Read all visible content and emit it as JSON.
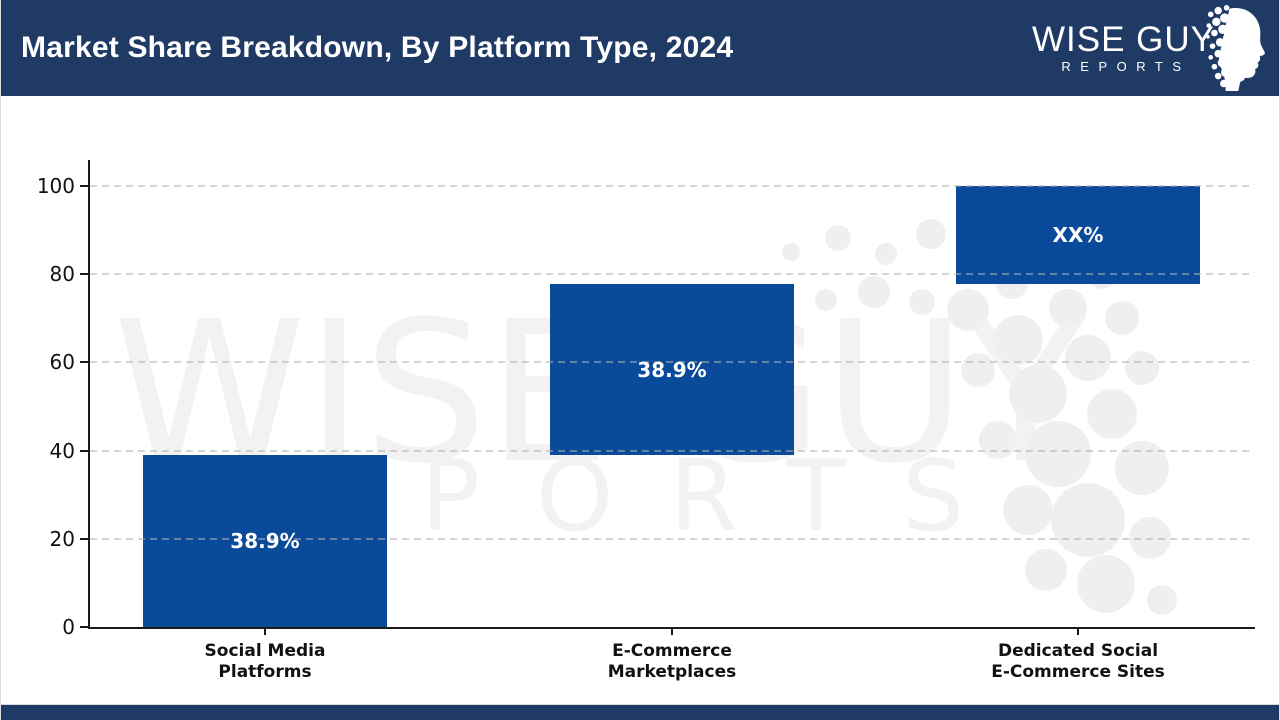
{
  "header": {
    "title": "Market Share Breakdown, By Platform Type, 2024",
    "logo": {
      "line1": "WISE GUY",
      "line2": "REPORTS"
    }
  },
  "watermark": {
    "line1": "WISE GUY",
    "line2": "REPORTS"
  },
  "chart_data": {
    "type": "bar",
    "subtype": "waterfall",
    "title": "Market Share Breakdown, By Platform Type, 2024",
    "categories": [
      "Social Media\nPlatforms",
      "E-Commerce\nMarketplaces",
      "Dedicated Social\nE-Commerce Sites"
    ],
    "segments": [
      {
        "category": "Social Media Platforms",
        "start": 0,
        "end": 38.9,
        "label": "38.9%"
      },
      {
        "category": "E-Commerce Marketplaces",
        "start": 38.9,
        "end": 77.8,
        "label": "38.9%"
      },
      {
        "category": "Dedicated Social E-Commerce Sites",
        "start": 77.8,
        "end": 100,
        "label": "XX%"
      }
    ],
    "yticks": [
      0,
      20,
      40,
      60,
      80,
      100
    ],
    "ylim": [
      0,
      106
    ],
    "xlabel": "",
    "ylabel": "",
    "grid": "horizontal-dashed",
    "legend": "none",
    "colors": {
      "bar": "#0a4a9b",
      "bar_label": "#ffffff",
      "header_bg": "#203a66",
      "footer_bg": "#203a66",
      "grid": "#b0b0b0",
      "axis": "#1a1a1a",
      "tick_text": "#111111",
      "watermark": "#f2f2f2"
    }
  }
}
